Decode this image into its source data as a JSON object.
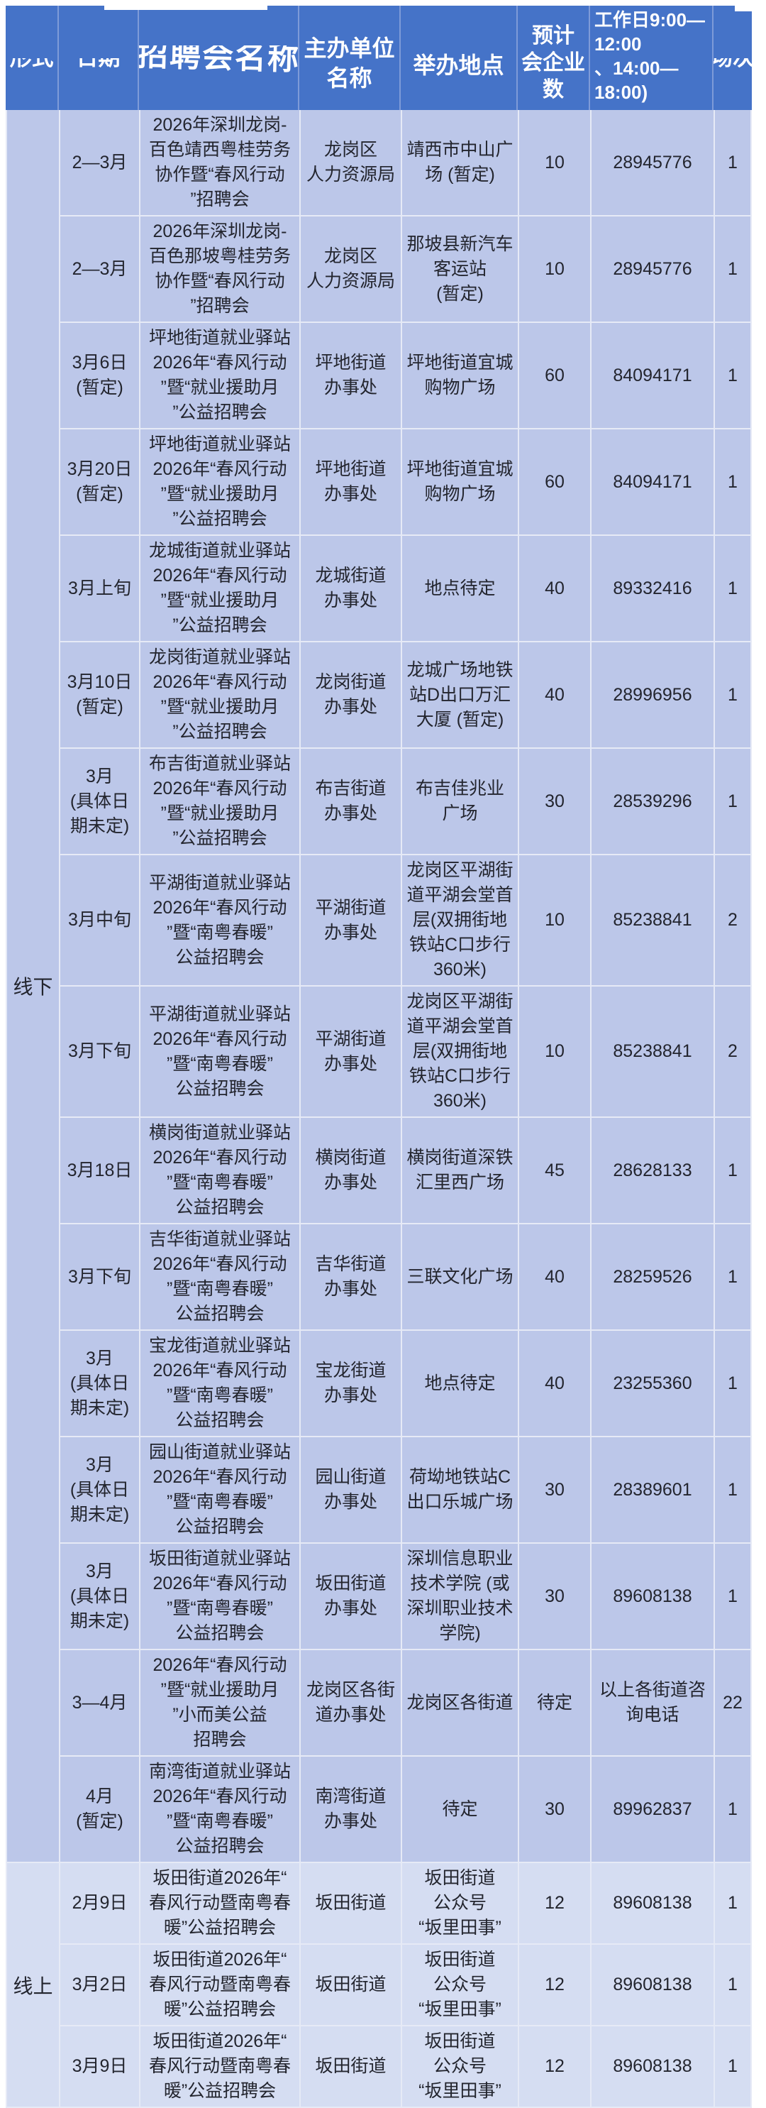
{
  "colors": {
    "header_bg": "#4573C8",
    "offline_bg": "#BCC7E9",
    "online_bg": "#D5DDF2",
    "grid": "#E6EAF6",
    "text": "#23252E",
    "header_text": "#FFFFFF"
  },
  "header": {
    "col_format": "形式",
    "col_date": "日期",
    "col_fair_name": "招聘会名称",
    "col_organizer": "主办单位\n名称",
    "col_venue": "举办地点",
    "col_companies": "预计\n会企业\n数",
    "col_phone_hours": "工作日9:00—12:00\n、14:00—18:00)",
    "col_sessions": "场次"
  },
  "sections": [
    {
      "label": "线下",
      "rows": [
        {
          "date": "2—3月",
          "name": "2026年深圳龙岗-\n百色靖西粤桂劳务\n协作暨“春风行动\n”招聘会",
          "org": "龙岗区\n人力资源局",
          "venue": "靖西市中山广\n场 (暂定)",
          "companies": "10",
          "phone": "28945776",
          "sessions": "1"
        },
        {
          "date": "2—3月",
          "name": "2026年深圳龙岗-\n百色那坡粤桂劳务\n协作暨“春风行动\n”招聘会",
          "org": "龙岗区\n人力资源局",
          "venue": "那坡县新汽车\n客运站\n(暂定)",
          "companies": "10",
          "phone": "28945776",
          "sessions": "1"
        },
        {
          "date": "3月6日\n(暂定)",
          "name": "坪地街道就业驿站\n2026年“春风行动\n”暨“就业援助月\n”公益招聘会",
          "org": "坪地街道\n办事处",
          "venue": "坪地街道宜城\n购物广场",
          "companies": "60",
          "phone": "84094171",
          "sessions": "1"
        },
        {
          "date": "3月20日\n(暂定)",
          "name": "坪地街道就业驿站\n2026年“春风行动\n”暨“就业援助月\n”公益招聘会",
          "org": "坪地街道\n办事处",
          "venue": "坪地街道宜城\n购物广场",
          "companies": "60",
          "phone": "84094171",
          "sessions": "1"
        },
        {
          "date": "3月上旬",
          "name": "龙城街道就业驿站\n2026年“春风行动\n”暨“就业援助月\n”公益招聘会",
          "org": "龙城街道\n办事处",
          "venue": "地点待定",
          "companies": "40",
          "phone": "89332416",
          "sessions": "1"
        },
        {
          "date": "3月10日\n(暂定)",
          "name": "龙岗街道就业驿站\n2026年“春风行动\n”暨“就业援助月\n”公益招聘会",
          "org": "龙岗街道\n办事处",
          "venue": "龙城广场地铁\n站D出口万汇\n大厦 (暂定)",
          "companies": "40",
          "phone": "28996956",
          "sessions": "1"
        },
        {
          "date": "3月\n(具体日\n期未定)",
          "name": "布吉街道就业驿站\n2026年“春风行动\n”暨“就业援助月\n”公益招聘会",
          "org": "布吉街道\n办事处",
          "venue": "布吉佳兆业\n广场",
          "companies": "30",
          "phone": "28539296",
          "sessions": "1"
        },
        {
          "date": "3月中旬",
          "name": "平湖街道就业驿站\n2026年“春风行动\n”暨“南粤春暖”\n公益招聘会",
          "org": "平湖街道\n办事处",
          "venue": "龙岗区平湖街\n道平湖会堂首\n层(双拥街地\n铁站C口步行\n360米)",
          "companies": "10",
          "phone": "85238841",
          "sessions": "2"
        },
        {
          "date": "3月下旬",
          "name": "平湖街道就业驿站\n2026年“春风行动\n”暨“南粤春暖”\n公益招聘会",
          "org": "平湖街道\n办事处",
          "venue": "龙岗区平湖街\n道平湖会堂首\n层(双拥街地\n铁站C口步行\n360米)",
          "companies": "10",
          "phone": "85238841",
          "sessions": "2"
        },
        {
          "date": "3月18日",
          "name": "横岗街道就业驿站\n2026年“春风行动\n”暨“南粤春暖”\n公益招聘会",
          "org": "横岗街道\n办事处",
          "venue": "横岗街道深铁\n汇里西广场",
          "companies": "45",
          "phone": "28628133",
          "sessions": "1"
        },
        {
          "date": "3月下旬",
          "name": "吉华街道就业驿站\n2026年“春风行动\n”暨“南粤春暖”\n公益招聘会",
          "org": "吉华街道\n办事处",
          "venue": "三联文化广场",
          "companies": "40",
          "phone": "28259526",
          "sessions": "1"
        },
        {
          "date": "3月\n(具体日\n期未定)",
          "name": "宝龙街道就业驿站\n2026年“春风行动\n”暨“南粤春暖”\n公益招聘会",
          "org": "宝龙街道\n办事处",
          "venue": "地点待定",
          "companies": "40",
          "phone": "23255360",
          "sessions": "1"
        },
        {
          "date": "3月\n(具体日\n期未定)",
          "name": "园山街道就业驿站\n2026年“春风行动\n”暨“南粤春暖”\n公益招聘会",
          "org": "园山街道\n办事处",
          "venue": "荷坳地铁站C\n出口乐城广场",
          "companies": "30",
          "phone": "28389601",
          "sessions": "1"
        },
        {
          "date": "3月\n(具体日\n期未定)",
          "name": "坂田街道就业驿站\n2026年“春风行动\n”暨“南粤春暖”\n公益招聘会",
          "org": "坂田街道\n办事处",
          "venue": "深圳信息职业\n技术学院 (或\n深圳职业技术\n学院)",
          "companies": "30",
          "phone": "89608138",
          "sessions": "1"
        },
        {
          "date": "3—4月",
          "name": "2026年“春风行动\n”暨“就业援助月\n”小而美公益\n招聘会",
          "org": "龙岗区各街\n道办事处",
          "venue": "龙岗区各街道",
          "companies": "待定",
          "phone": "以上各街道咨\n询电话",
          "sessions": "22"
        },
        {
          "date": "4月\n(暂定)",
          "name": "南湾街道就业驿站\n2026年“春风行动\n”暨“南粤春暖”\n公益招聘会",
          "org": "南湾街道\n办事处",
          "venue": "待定",
          "companies": "30",
          "phone": "89962837",
          "sessions": "1"
        }
      ]
    },
    {
      "label": "线上",
      "rows": [
        {
          "date": "2月9日",
          "name": "坂田街道2026年“\n春风行动暨南粤春\n暖”公益招聘会",
          "org": "坂田街道",
          "venue": "坂田街道\n公众号\n“坂里田事”",
          "companies": "12",
          "phone": "89608138",
          "sessions": "1"
        },
        {
          "date": "3月2日",
          "name": "坂田街道2026年“\n春风行动暨南粤春\n暖”公益招聘会",
          "org": "坂田街道",
          "venue": "坂田街道\n公众号\n“坂里田事”",
          "companies": "12",
          "phone": "89608138",
          "sessions": "1"
        },
        {
          "date": "3月9日",
          "name": "坂田街道2026年“\n春风行动暨南粤春\n暖”公益招聘会",
          "org": "坂田街道",
          "venue": "坂田街道\n公众号\n“坂里田事”",
          "companies": "12",
          "phone": "89608138",
          "sessions": "1"
        }
      ]
    }
  ]
}
